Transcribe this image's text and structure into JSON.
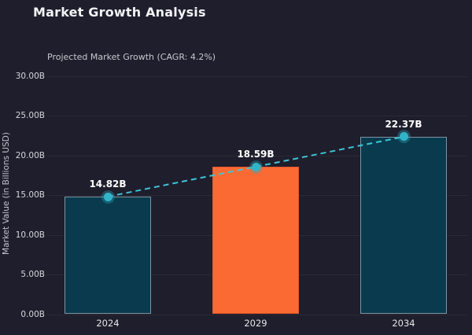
{
  "chart_data": {
    "type": "bar",
    "title": "Market Growth Analysis",
    "subtitle": "Projected Market Growth (CAGR: 4.2%)",
    "xlabel": "",
    "ylabel": "Market Value (in Billions USD)",
    "categories": [
      "2024",
      "2029",
      "2034"
    ],
    "values": [
      14.82,
      18.59,
      22.37
    ],
    "value_labels": [
      "14.82B",
      "18.59B",
      "22.37B"
    ],
    "bar_colors": [
      "#0a3a4d",
      "#fb6a33",
      "#0a3a4d"
    ],
    "bar_styles": [
      "teal",
      "orange",
      "teal"
    ],
    "ylim": [
      0,
      30
    ],
    "y_ticks": [
      {
        "value": 30,
        "label": "30.00B"
      },
      {
        "value": 25,
        "label": "25.00B"
      },
      {
        "value": 20,
        "label": "20.00B"
      },
      {
        "value": 15,
        "label": "15.00B"
      },
      {
        "value": 10,
        "label": "10.00B"
      },
      {
        "value": 5,
        "label": "5.00B"
      },
      {
        "value": 0,
        "label": "0.00B"
      }
    ],
    "grid": "faint horizontal gridlines on",
    "legend_position": "none",
    "trendline": {
      "type": "line",
      "style": "dashed",
      "x": [
        "2024",
        "2029",
        "2034"
      ],
      "y": [
        14.82,
        18.59,
        22.37
      ],
      "line_color": "#3fc4d6",
      "marker": "circle",
      "marker_color": "#32b4c8"
    },
    "colors": {
      "background": "#1f1e2c",
      "title_text": "#f2f2f5",
      "subtitle_text": "#c8c8d0",
      "axis_text": "#d6d6dc",
      "bar_value_text": "#ffffff",
      "teal_bar_fill": "#0a3a4d",
      "teal_bar_border": "#7e95a3",
      "orange_bar_fill": "#fb6a33",
      "trend_line": "#3fc4d6"
    }
  }
}
